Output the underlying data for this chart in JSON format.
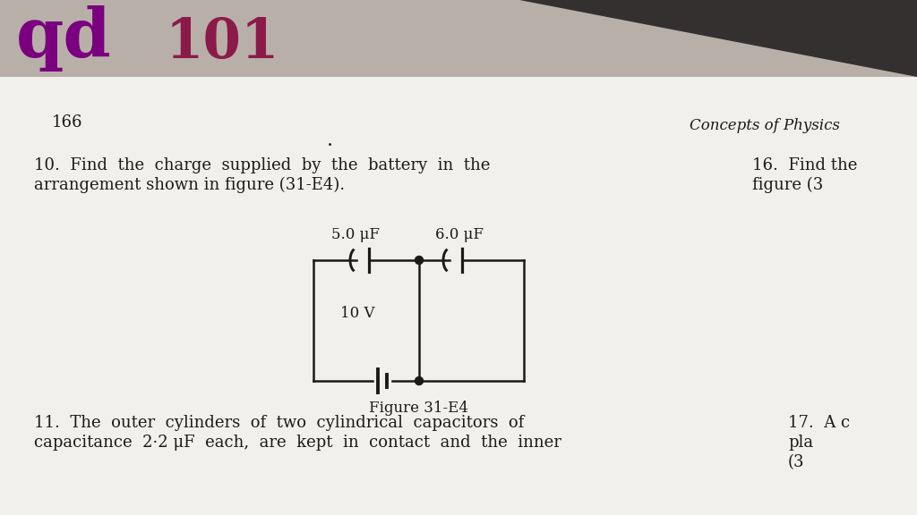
{
  "bg_color": "#d8d4cc",
  "page_color": "#f2f0ec",
  "page_number": "166",
  "book_title": "Concepts of Physics",
  "problem_text": "10.  Find  the  charge  supplied  by  the  battery  in  the",
  "problem_text2": "arrangement shown in figure (31-E4).",
  "problem_16_text": "16.  Find the",
  "problem_16_text2": "figure (3",
  "cap1_label": "5.0 μF",
  "cap2_label": "6.0 μF",
  "battery_label": "10 V",
  "figure_label": "Figure 31-E4",
  "problem_11_text": "11.  The  outer  cylinders  of  two  cylindrical  capacitors  of",
  "problem_11_text2": "capacitance  2·2 μF  each,  are  kept  in  contact  and  the  inner",
  "problem_17_text": "17.  A c",
  "problem_17_text2": "pla",
  "problem_17_text3": "(3",
  "text_color": "#1a1a1a",
  "line_color": "#1a1a1a",
  "font_size_body": 13,
  "font_size_label": 12,
  "font_size_small": 11
}
